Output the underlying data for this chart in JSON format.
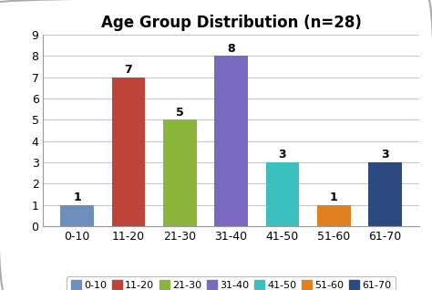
{
  "title": "Age Group Distribution (n=28)",
  "categories": [
    "0-10",
    "11-20",
    "21-30",
    "31-40",
    "41-50",
    "51-60",
    "61-70"
  ],
  "values": [
    1,
    7,
    5,
    8,
    3,
    1,
    3
  ],
  "bar_colors": [
    "#6e8fbb",
    "#c0433a",
    "#8ab53a",
    "#7b68c0",
    "#3bbfbf",
    "#e08020",
    "#2c4a80"
  ],
  "ylim": [
    0,
    9
  ],
  "yticks": [
    0,
    1,
    2,
    3,
    4,
    5,
    6,
    7,
    8,
    9
  ],
  "title_fontsize": 12,
  "label_fontsize": 9,
  "tick_fontsize": 9,
  "legend_fontsize": 8,
  "background_color": "#ffffff",
  "grid_color": "#c8c8c8",
  "bar_width": 0.65
}
